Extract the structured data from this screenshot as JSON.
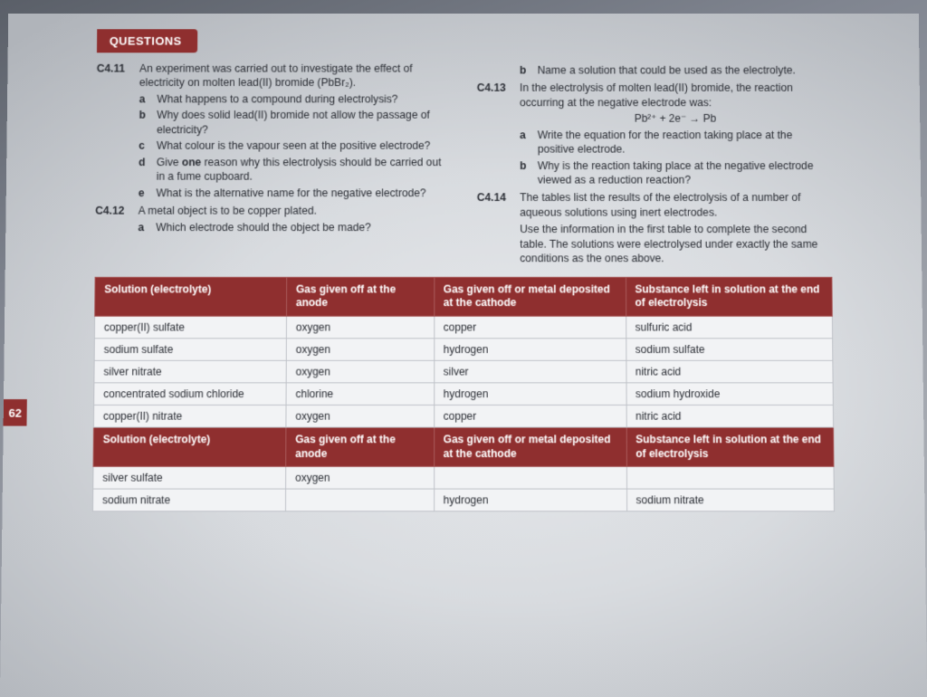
{
  "side_tab": "62",
  "tab_title": "QUESTIONS",
  "left": {
    "q11": {
      "num": "C4.11",
      "intro": "An experiment was carried out to investigate the effect of electricity on molten lead(II) bromide (PbBr₂).",
      "a": "What happens to a compound during electrolysis?",
      "b": "Why does solid lead(II) bromide not allow the passage of electricity?",
      "c": "What colour is the vapour seen at the positive electrode?",
      "d_pre": "Give ",
      "d_bold": "one",
      "d_post": " reason why this electrolysis should be carried out in a fume cupboard.",
      "e": "What is the alternative name for the negative electrode?"
    },
    "q12": {
      "num": "C4.12",
      "intro": "A metal object is to be copper plated.",
      "a": "Which electrode should the object be made?"
    }
  },
  "right": {
    "q12b": "Name a solution that could be used as the electrolyte.",
    "q13": {
      "num": "C4.13",
      "intro": "In the electrolysis of molten lead(II) bromide, the reaction occurring at the negative electrode was:",
      "formula": "Pb²⁺ + 2e⁻ → Pb",
      "a": "Write the equation for the reaction taking place at the positive electrode.",
      "b": "Why is the reaction taking place at the negative electrode viewed as a reduction reaction?"
    },
    "q14": {
      "num": "C4.14",
      "p1": "The tables list the results of the electrolysis of a number of aqueous solutions using inert electrodes.",
      "p2": "Use the information in the first table to complete the second table. The solutions were electrolysed under exactly the same conditions as the ones above."
    }
  },
  "table": {
    "headers": {
      "c1": "Solution (electrolyte)",
      "c2": "Gas given off at the anode",
      "c3": "Gas given off or metal deposited at the cathode",
      "c4": "Substance left in solution at the end of electrolysis"
    },
    "rows1": [
      [
        "copper(II) sulfate",
        "oxygen",
        "copper",
        "sulfuric acid"
      ],
      [
        "sodium sulfate",
        "oxygen",
        "hydrogen",
        "sodium sulfate"
      ],
      [
        "silver nitrate",
        "oxygen",
        "silver",
        "nitric acid"
      ],
      [
        "concentrated sodium chloride",
        "chlorine",
        "hydrogen",
        "sodium hydroxide"
      ],
      [
        "copper(II) nitrate",
        "oxygen",
        "copper",
        "nitric acid"
      ]
    ],
    "rows2": [
      [
        "silver sulfate",
        "oxygen",
        "",
        ""
      ],
      [
        "sodium nitrate",
        "",
        "hydrogen",
        "sodium nitrate"
      ]
    ]
  }
}
